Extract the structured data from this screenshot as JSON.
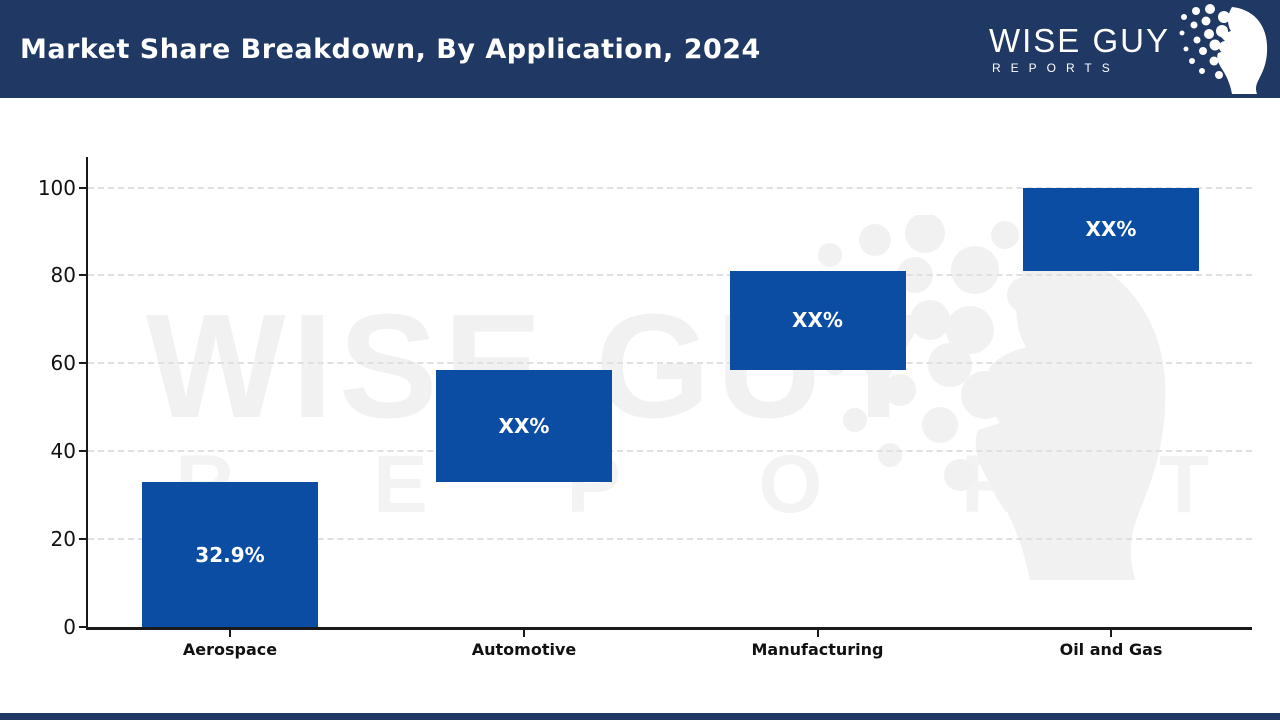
{
  "header": {
    "title": "Market Share Breakdown, By Application, 2024",
    "bg_color": "#1f3864",
    "text_color": "#ffffff",
    "logo": {
      "line1": "WISE GUY",
      "line2": "REPORTS",
      "face_icon": "dotted-head-profile-icon"
    }
  },
  "watermark": {
    "line1": "WISE GUY",
    "line2": "R E P O R T S",
    "face_icon": "dotted-head-profile-icon",
    "color": "#f1f1f1"
  },
  "footer": {
    "bg_color": "#1f3864"
  },
  "chart_data": {
    "type": "bar",
    "subtype": "waterfall",
    "title": "Market Share Breakdown, By Application, 2024",
    "xlabel": "",
    "ylabel": "",
    "categories": [
      "Aerospace",
      "Automotive",
      "Manufacturing",
      "Oil and Gas"
    ],
    "bars": [
      {
        "category": "Aerospace",
        "value": 32.9,
        "cumulative_start": 0,
        "cumulative_end": 32.9,
        "label": "32.9%"
      },
      {
        "category": "Automotive",
        "value": 25.5,
        "cumulative_start": 32.9,
        "cumulative_end": 58.4,
        "label": "XX%"
      },
      {
        "category": "Manufacturing",
        "value": 22.7,
        "cumulative_start": 58.4,
        "cumulative_end": 81.1,
        "label": "XX%"
      },
      {
        "category": "Oil and Gas",
        "value": 18.9,
        "cumulative_start": 81.1,
        "cumulative_end": 100,
        "label": "XX%"
      }
    ],
    "y_ticks": [
      0,
      20,
      40,
      60,
      80,
      100
    ],
    "ylim": [
      0,
      106
    ],
    "grid": "horizontal-dashed",
    "legend": "none",
    "bar_color": "#0b4da2",
    "bar_label_color": "#ffffff",
    "grid_color": "#e0e0e0",
    "axis_color": "#1a1a1a"
  }
}
